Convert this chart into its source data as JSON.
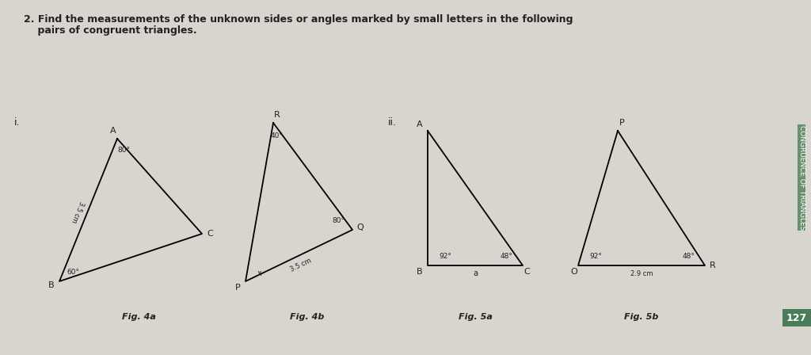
{
  "bg_color": "#d8d4ce",
  "title_line1": "2. Find the measurements of the unknown sides or angles marked by small letters in the following",
  "title_line2": "    pairs of congruent triangles.",
  "label_i": "i.",
  "label_ii": "ii.",
  "fig4a_label": "Fig. 4a",
  "fig4b_label": "Fig. 4b",
  "fig5a_label": "Fig. 5a",
  "fig5b_label": "Fig. 5b",
  "sidebar_text": "CONGRUENCE OF TRIANGLES",
  "page_num": "127",
  "page_num_bg": "#4a7c59",
  "text_color": "#222222"
}
